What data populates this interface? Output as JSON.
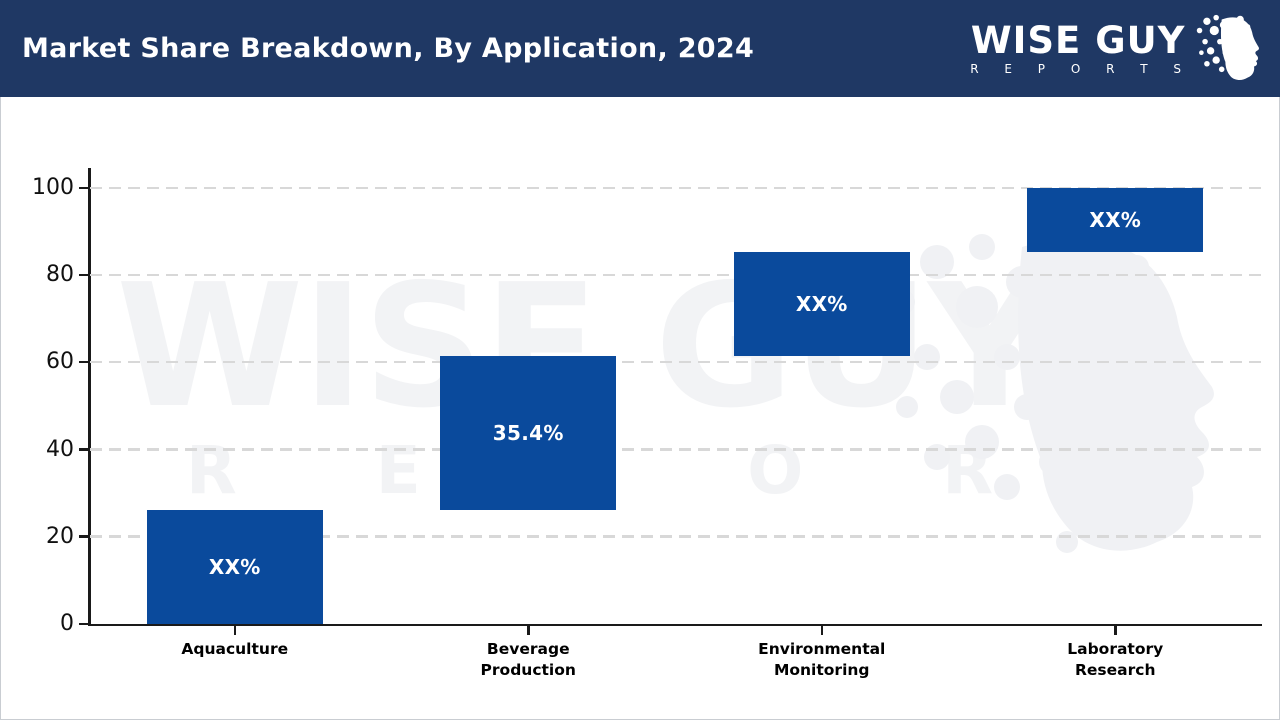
{
  "header": {
    "title": "Market Share Breakdown, By Application, 2024",
    "logo": {
      "line1": "WISE GUY",
      "line2": "R E P O R T S"
    }
  },
  "watermark": {
    "line1": "WISE GUY",
    "line2": "R E P O R T S"
  },
  "colors": {
    "header_bg": "#1f3864",
    "bar_blue": "#0a4a9c",
    "grid_gray": "#d8d8d8",
    "watermark_gray": "#f2f3f5",
    "axis_black": "#1a1a1a"
  },
  "chart_data": {
    "type": "bar",
    "subtype": "waterfall",
    "title": "Market Share Breakdown, By Application, 2024",
    "xlabel": "",
    "ylabel": "",
    "categories": [
      [
        "Aquaculture"
      ],
      [
        "Beverage",
        "Production"
      ],
      [
        "Environmental",
        "Monitoring"
      ],
      [
        "Laboratory",
        "Research"
      ]
    ],
    "segments": [
      {
        "category": "Aquaculture",
        "start": 0,
        "end": 26.1,
        "value": 26.1,
        "label": "XX%"
      },
      {
        "category": "Beverage Production",
        "start": 26.1,
        "end": 61.5,
        "value": 35.4,
        "label": "35.4%"
      },
      {
        "category": "Environmental Monitoring",
        "start": 61.5,
        "end": 85.3,
        "value": 23.8,
        "label": "XX%"
      },
      {
        "category": "Laboratory Research",
        "start": 85.3,
        "end": 100,
        "value": 14.7,
        "label": "XX%"
      }
    ],
    "yticks": [
      0,
      20,
      40,
      60,
      80,
      100
    ],
    "ylim": [
      0,
      105
    ],
    "grid": {
      "horizontal": true,
      "style": "dashed",
      "color": "#d8d8d8"
    },
    "legend": "none",
    "bar_color": "#0a4a9c",
    "bar_label_color": "#ffffff"
  }
}
